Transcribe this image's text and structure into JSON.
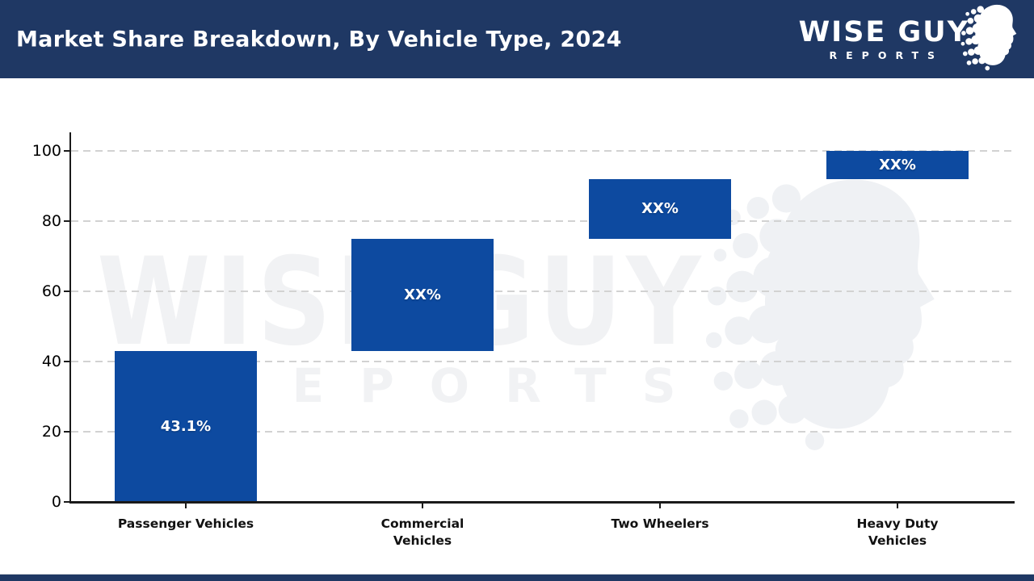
{
  "header": {
    "title": "Market Share Breakdown, By Vehicle Type, 2024",
    "logo": {
      "name": "WISE GUY",
      "tagline": "REPORTS"
    }
  },
  "watermark": {
    "name": "WISE GUY",
    "tagline": "REPORTS"
  },
  "colors": {
    "header_bg": "#1f3864",
    "bar_fill": "#0d4aa0",
    "grid_line": "#d2d2d2",
    "axis_line": "#1a1a1a",
    "bar_label_text": "#ffffff",
    "watermark_text": "#f1f2f4"
  },
  "chart_data": {
    "type": "bar",
    "variant": "waterfall",
    "title": "Market Share Breakdown, By Vehicle Type, 2024",
    "xlabel": "",
    "ylabel": "",
    "ylim": [
      0,
      100
    ],
    "yticks": [
      0,
      20,
      40,
      60,
      80,
      100
    ],
    "grid": "horizontal dashed",
    "legend": "none",
    "categories": [
      "Passenger Vehicles",
      "Commercial Vehicles",
      "Two Wheelers",
      "Heavy Duty Vehicles"
    ],
    "category_label_lines": [
      [
        "Passenger Vehicles"
      ],
      [
        "Commercial",
        "Vehicles"
      ],
      [
        "Two Wheelers"
      ],
      [
        "Heavy Duty",
        "Vehicles"
      ]
    ],
    "bars": [
      {
        "category": "Passenger Vehicles",
        "start": 0,
        "end": 43.1,
        "value_label": "43.1%"
      },
      {
        "category": "Commercial Vehicles",
        "start": 43.1,
        "end": 75.0,
        "value_label": "XX%"
      },
      {
        "category": "Two Wheelers",
        "start": 75.0,
        "end": 92.0,
        "value_label": "XX%"
      },
      {
        "category": "Heavy Duty Vehicles",
        "start": 92.0,
        "end": 100.0,
        "value_label": "XX%"
      }
    ]
  }
}
